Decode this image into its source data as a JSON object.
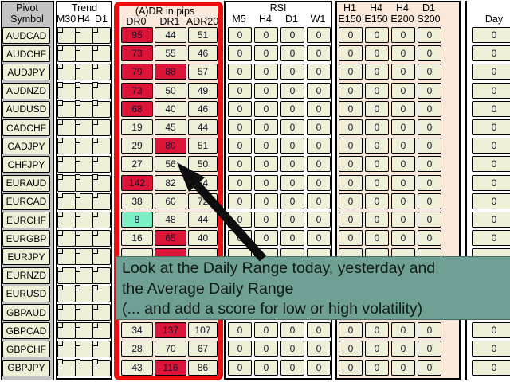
{
  "colors": {
    "cell_bg": "#F0EFD8",
    "high_range": "#DC1438",
    "low_range": "#7DEFC6",
    "panel_peach": "#FAE9DB",
    "red_frame": "#EE0E0E",
    "header_gray": "#C4C4C4",
    "tooltip_bg": "#6FA096",
    "text": "#15152E"
  },
  "header": {
    "pivot": "Pivot",
    "symbol": "Symbol",
    "trend": {
      "title": "Trend",
      "cols": [
        "M30",
        "H4",
        "D1"
      ]
    },
    "adr": {
      "title": "(A)DR in pips",
      "cols": [
        "DR0",
        "DR1",
        "ADR20"
      ]
    },
    "rsi": {
      "title": "RSI",
      "cols": [
        "M5",
        "H4",
        "D1",
        "W1"
      ]
    },
    "ema": {
      "cols": [
        {
          "tf": "H1",
          "p": "E150"
        },
        {
          "tf": "H4",
          "p": "E150"
        },
        {
          "tf": "H4",
          "p": "E200"
        },
        {
          "tf": "D1",
          "p": "S200"
        }
      ]
    },
    "day": "Day"
  },
  "rows": [
    {
      "symbol": "AUDCAD",
      "dr": [
        {
          "v": "95",
          "hl": "high"
        },
        {
          "v": "44"
        },
        {
          "v": "51"
        }
      ],
      "rsi": [
        "0",
        "0",
        "0",
        "0"
      ],
      "score": [
        "0",
        "0",
        "0",
        "0"
      ],
      "day": "0"
    },
    {
      "symbol": "AUDCHF",
      "dr": [
        {
          "v": "73",
          "hl": "high"
        },
        {
          "v": "55"
        },
        {
          "v": "46"
        }
      ],
      "rsi": [
        "0",
        "0",
        "0",
        "0"
      ],
      "score": [
        "0",
        "0",
        "0",
        "0"
      ],
      "day": "0"
    },
    {
      "symbol": "AUDJPY",
      "dr": [
        {
          "v": "79",
          "hl": "high"
        },
        {
          "v": "88",
          "hl": "high"
        },
        {
          "v": "57"
        }
      ],
      "rsi": [
        "0",
        "0",
        "0",
        "0"
      ],
      "score": [
        "0",
        "0",
        "0",
        "0"
      ],
      "day": "0"
    },
    {
      "symbol": "AUDNZD",
      "dr": [
        {
          "v": "73",
          "hl": "high"
        },
        {
          "v": "50"
        },
        {
          "v": "49"
        }
      ],
      "rsi": [
        "0",
        "0",
        "0",
        "0"
      ],
      "score": [
        "0",
        "0",
        "0",
        "0"
      ],
      "day": "0"
    },
    {
      "symbol": "AUDUSD",
      "dr": [
        {
          "v": "68",
          "hl": "high"
        },
        {
          "v": "40"
        },
        {
          "v": "46"
        }
      ],
      "rsi": [
        "0",
        "0",
        "0",
        "0"
      ],
      "score": [
        "0",
        "0",
        "0",
        "0"
      ],
      "day": "0"
    },
    {
      "symbol": "CADCHF",
      "dr": [
        {
          "v": "19"
        },
        {
          "v": "45"
        },
        {
          "v": "44"
        }
      ],
      "rsi": [
        "0",
        "0",
        "0",
        "0"
      ],
      "score": [
        "0",
        "0",
        "0",
        "0"
      ],
      "day": "0"
    },
    {
      "symbol": "CADJPY",
      "dr": [
        {
          "v": "29"
        },
        {
          "v": "80",
          "hl": "high"
        },
        {
          "v": "51"
        }
      ],
      "rsi": [
        "0",
        "0",
        "0",
        "0"
      ],
      "score": [
        "0",
        "0",
        "0",
        "0"
      ],
      "day": "0"
    },
    {
      "symbol": "CHFJPY",
      "dr": [
        {
          "v": "27"
        },
        {
          "v": "56"
        },
        {
          "v": "50"
        }
      ],
      "rsi": [
        "0",
        "0",
        "0",
        "0"
      ],
      "score": [
        "0",
        "0",
        "0",
        "0"
      ],
      "day": "0"
    },
    {
      "symbol": "EURAUD",
      "dr": [
        {
          "v": "142",
          "hl": "high"
        },
        {
          "v": "82"
        },
        {
          "v": "94"
        }
      ],
      "rsi": [
        "0",
        "0",
        "0",
        "0"
      ],
      "score": [
        "0",
        "0",
        "0",
        "0"
      ],
      "day": "0"
    },
    {
      "symbol": "EURCAD",
      "dr": [
        {
          "v": "38"
        },
        {
          "v": "60"
        },
        {
          "v": "72"
        }
      ],
      "rsi": [
        "0",
        "0",
        "0",
        "0"
      ],
      "score": [
        "0",
        "0",
        "0",
        "0"
      ],
      "day": "0"
    },
    {
      "symbol": "EURCHF",
      "dr": [
        {
          "v": "8",
          "hl": "low"
        },
        {
          "v": "48"
        },
        {
          "v": "44"
        }
      ],
      "rsi": [
        "0",
        "0",
        "0",
        "0"
      ],
      "score": [
        "0",
        "0",
        "0",
        "0"
      ],
      "day": "0"
    },
    {
      "symbol": "EURGBP",
      "dr": [
        {
          "v": "16"
        },
        {
          "v": "65",
          "hl": "high"
        },
        {
          "v": "40"
        }
      ],
      "rsi": [
        "0",
        "0",
        "0",
        "0"
      ],
      "score": [
        "0",
        "0",
        "0",
        "0"
      ],
      "day": "0"
    },
    {
      "symbol": "EURJPY",
      "dr": [
        {
          "v": null
        },
        {
          "v": null,
          "hl": "high"
        },
        {
          "v": null
        }
      ],
      "rsi": [
        null,
        null,
        null,
        null
      ],
      "score": [
        null,
        null,
        null,
        null
      ],
      "day": null
    },
    {
      "symbol": "EURNZD",
      "dr": [
        {
          "v": null
        },
        {
          "v": null
        },
        {
          "v": null
        }
      ],
      "rsi": [
        null,
        null,
        null,
        null
      ],
      "score": [
        null,
        null,
        null,
        null
      ],
      "day": null
    },
    {
      "symbol": "EURUSD",
      "dr": [
        {
          "v": null
        },
        {
          "v": null
        },
        {
          "v": null
        }
      ],
      "rsi": [
        null,
        null,
        null,
        null
      ],
      "score": [
        null,
        null,
        null,
        null
      ],
      "day": null
    },
    {
      "symbol": "GBPAUD",
      "dr": [
        {
          "v": null
        },
        {
          "v": null
        },
        {
          "v": null
        }
      ],
      "rsi": [
        null,
        null,
        null,
        null
      ],
      "score": [
        null,
        null,
        null,
        null
      ],
      "day": null
    },
    {
      "symbol": "GBPCAD",
      "dr": [
        {
          "v": "34"
        },
        {
          "v": "137",
          "hl": "high"
        },
        {
          "v": "107"
        }
      ],
      "rsi": [
        "0",
        "0",
        "0",
        "0"
      ],
      "score": [
        "0",
        "0",
        "0",
        "0"
      ],
      "day": "0"
    },
    {
      "symbol": "GBPCHF",
      "dr": [
        {
          "v": "28"
        },
        {
          "v": "70"
        },
        {
          "v": "67"
        }
      ],
      "rsi": [
        "0",
        "0",
        "0",
        "0"
      ],
      "score": [
        "0",
        "0",
        "0",
        "0"
      ],
      "day": "0"
    },
    {
      "symbol": "GBPJPY",
      "dr": [
        {
          "v": "43"
        },
        {
          "v": "116",
          "hl": "high"
        },
        {
          "v": "86"
        }
      ],
      "rsi": [
        "0",
        "0",
        "0",
        "0"
      ],
      "score": [
        "0",
        "0",
        "0",
        "0"
      ],
      "day": "0"
    }
  ],
  "tooltip": {
    "lines": [
      "Look at the Daily Range today, yesterday and",
      "the Average Daily Range",
      "(... and add a score for low or high volatility)"
    ]
  }
}
